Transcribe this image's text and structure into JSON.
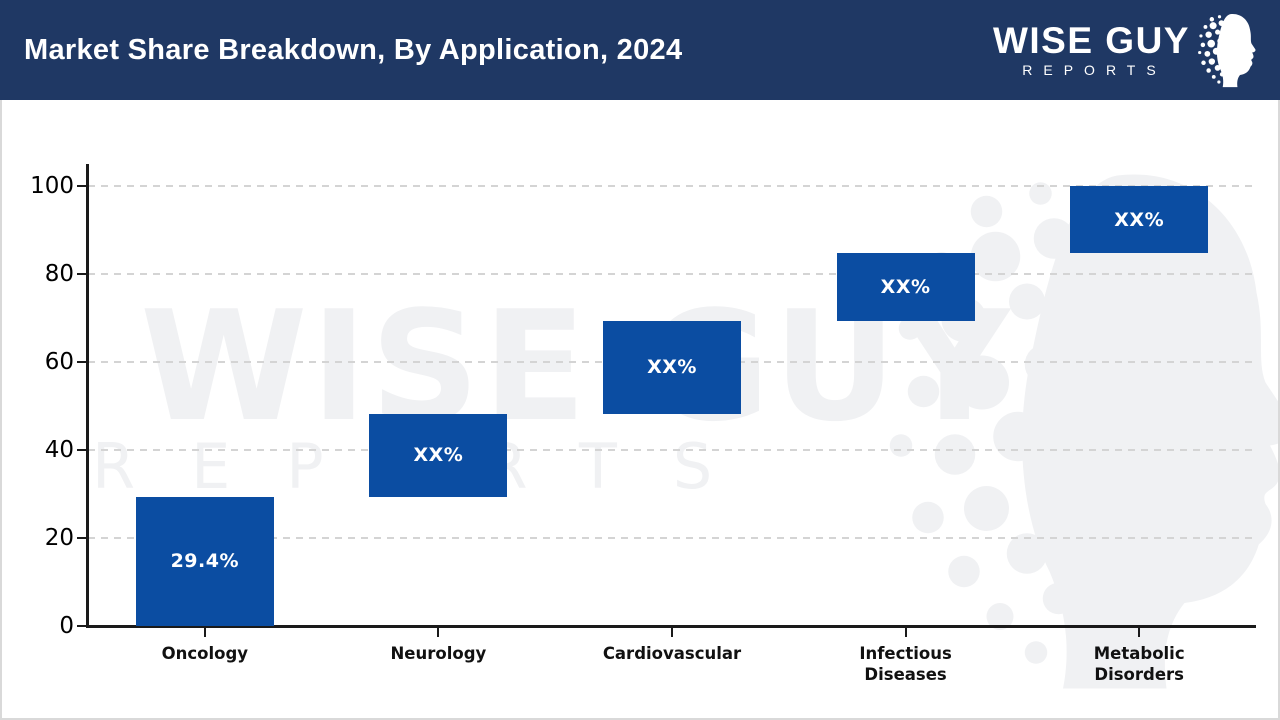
{
  "header": {
    "title": "Market Share Breakdown, By Application, 2024",
    "logo": {
      "name": "WISE GUY",
      "sub": "REPORTS"
    }
  },
  "watermark": {
    "name": "WISE GUY",
    "sub": "REPORTS"
  },
  "colors": {
    "header_bg": "#1f3864",
    "bar": "#0b4da2",
    "grid": "#d4d4d4",
    "axis": "#1a1a1a",
    "watermark": "#f0f1f3"
  },
  "chart_data": {
    "type": "bar",
    "subtype": "waterfall-stacked-breakdown",
    "title": "Market Share Breakdown, By Application, 2024",
    "categories": [
      "Oncology",
      "Neurology",
      "Cardiovascular",
      "Infectious\nDiseases",
      "Metabolic\nDisorders"
    ],
    "segments": [
      {
        "category": "Oncology",
        "start": 0,
        "end": 29.4,
        "label": "29.4%"
      },
      {
        "category": "Neurology",
        "start": 29.4,
        "end": 48.2,
        "label": "XX%"
      },
      {
        "category": "Cardiovascular",
        "start": 48.2,
        "end": 69.4,
        "label": "XX%"
      },
      {
        "category": "Infectious Diseases",
        "start": 69.4,
        "end": 84.7,
        "label": "XX%"
      },
      {
        "category": "Metabolic Disorders",
        "start": 84.7,
        "end": 100,
        "label": "XX%"
      }
    ],
    "xlabel": "",
    "ylabel": "",
    "yticks": [
      0,
      20,
      40,
      60,
      80,
      100
    ],
    "ylim": [
      0,
      105
    ],
    "grid": "horizontal-dashed",
    "legend": null
  }
}
